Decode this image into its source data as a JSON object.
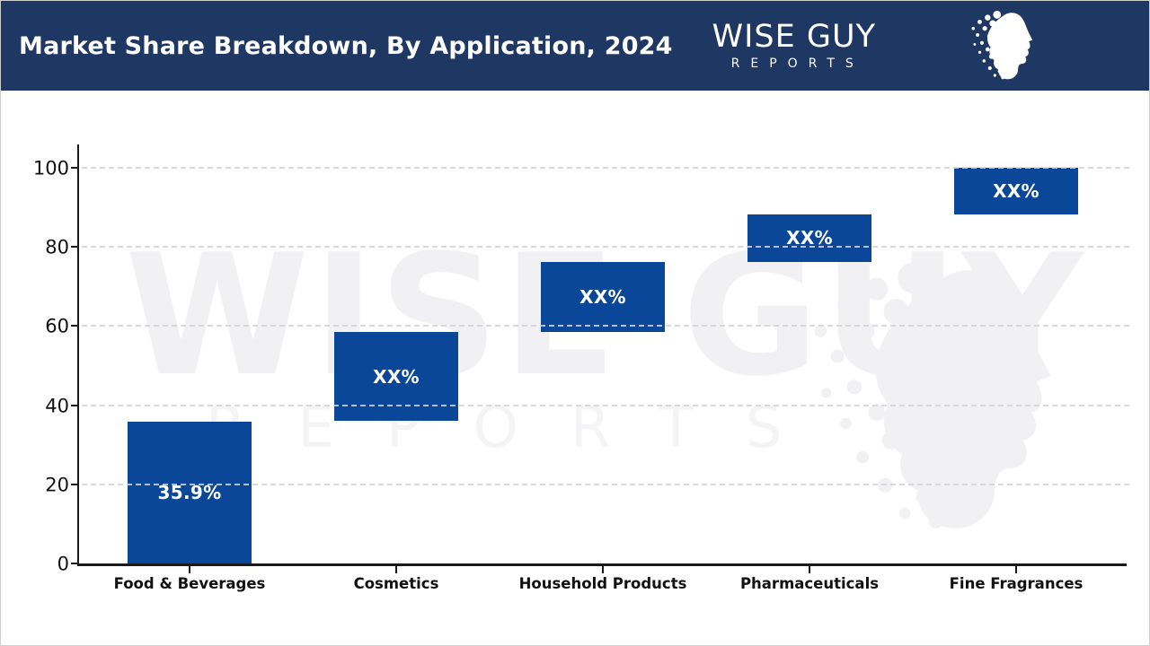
{
  "header": {
    "title": "Market Share Breakdown, By Application, 2024",
    "logo": {
      "line1": "WISE GUY",
      "line2": "REPORTS"
    }
  },
  "watermark": {
    "line1": "WISE GUY",
    "line2": "REPORTS"
  },
  "colors": {
    "header_bg": "#1f3763",
    "bar": "#0b4799",
    "bar_label": "#ffffff",
    "grid": "#d4d4d4",
    "axis": "#1a1a1a",
    "tick_label": "#111111",
    "watermark": "#f1f1f3",
    "frame_border": "#cfcfcf"
  },
  "chart_data": {
    "type": "bar",
    "subtype": "waterfall-floating-segments",
    "title": "Market Share Breakdown, By Application, 2024",
    "xlabel": "",
    "ylabel": "",
    "categories": [
      "Food & Beverages",
      "Cosmetics",
      "Household Products",
      "Pharmaceuticals",
      "Fine Fragrances"
    ],
    "segments": [
      {
        "category": "Food & Beverages",
        "start": 0,
        "end": 35.9,
        "label": "35.9%"
      },
      {
        "category": "Cosmetics",
        "start": 36.1,
        "end": 58.4,
        "label": "XX%"
      },
      {
        "category": "Household Products",
        "start": 58.4,
        "end": 76.2,
        "label": "XX%"
      },
      {
        "category": "Pharmaceuticals",
        "start": 76.3,
        "end": 88.3,
        "label": "XX%"
      },
      {
        "category": "Fine Fragrances",
        "start": 88.3,
        "end": 100.1,
        "label": "XX%"
      }
    ],
    "yticks": [
      0,
      20,
      40,
      60,
      80,
      100
    ],
    "ylim": [
      0,
      106
    ],
    "grid": "horizontal dashed, drawn over bars",
    "legend": "none",
    "masked_value_display": "XX%"
  }
}
